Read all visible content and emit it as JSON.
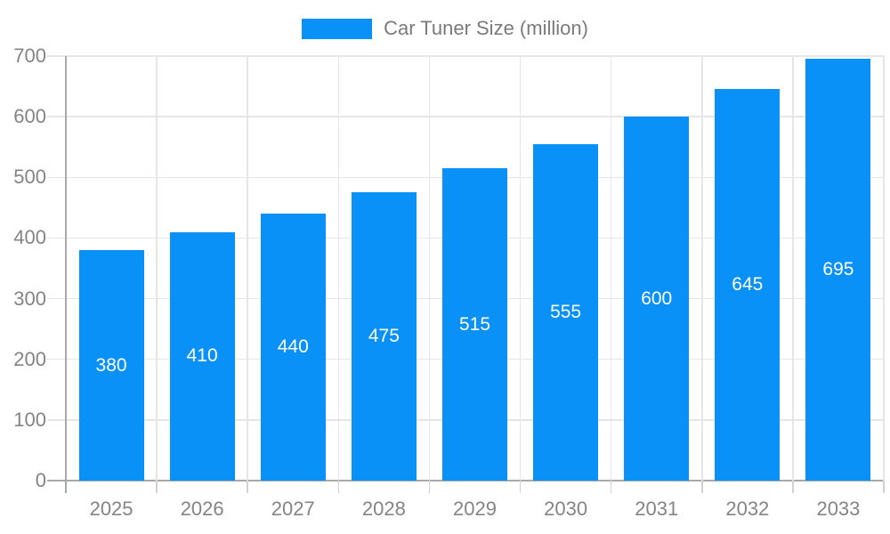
{
  "legend": {
    "label": "Car Tuner Size (million)"
  },
  "colors": {
    "bar": "#0991f8",
    "bar_label": "#ffffff",
    "grid": "#e6e6e6",
    "tick": "#d2d2d2",
    "axis_line": "#a9a9a9",
    "axis_text": "#848484",
    "legend_text": "#7a7a7a",
    "background": "#ffffff"
  },
  "chart_data": {
    "type": "bar",
    "title": "Car Tuner Size (million)",
    "categories": [
      "2025",
      "2026",
      "2027",
      "2028",
      "2029",
      "2030",
      "2031",
      "2032",
      "2033"
    ],
    "values": [
      380,
      410,
      440,
      475,
      515,
      555,
      600,
      645,
      695
    ],
    "bar_labels": [
      "380",
      "410",
      "440",
      "475",
      "515",
      "555",
      "600",
      "645",
      "695"
    ],
    "yticks": [
      0,
      100,
      200,
      300,
      400,
      500,
      600,
      700
    ],
    "ytick_labels": [
      "0",
      "100",
      "200",
      "300",
      "400",
      "500",
      "600",
      "700"
    ],
    "ylim": [
      0,
      700
    ],
    "xlabel": "",
    "ylabel": "",
    "grid": true,
    "legend_position": "top",
    "bar_label_position": "center"
  }
}
